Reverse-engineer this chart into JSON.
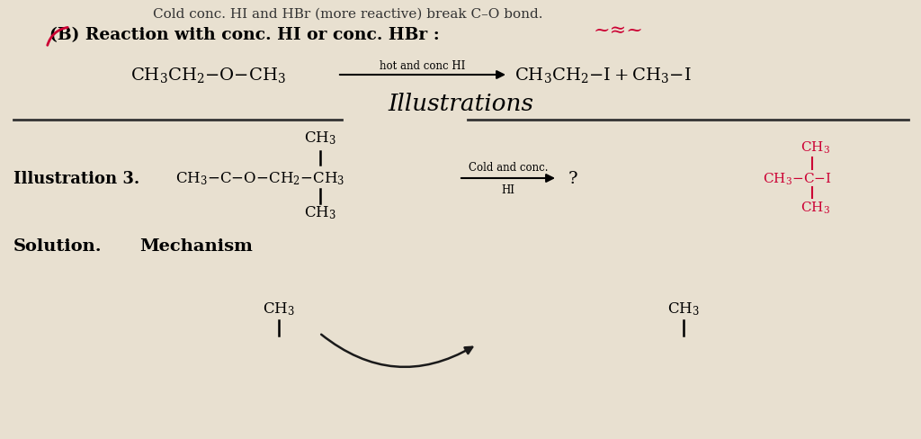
{
  "bg_color": "#e8e0d0",
  "top_text": "Cold conc. HI and HBr (more reactive) break C–O bond.",
  "section_B": "(B) Reaction with conc. HI or conc. HBr :",
  "rxn_left": "CH₃CH₂–O–CH₃",
  "rxn_arrow_top": "hot and conc HI",
  "rxn_right": "CH₃CH₂–I + CH₃–I",
  "illus_label": "Illustrations",
  "ill3_label": "Illustration 3.",
  "ill3_ch3_top": "CH₃",
  "ill3_main": "CH₃–C–O–CH₂–CH₃",
  "ill3_ch3_bot": "CH₃",
  "ill3_arr_top": "Cold and conc.",
  "ill3_arr_bot": "HI",
  "ill3_q": "?",
  "hw_ch3_top": "CH₃",
  "hw_mid": "CH₃–C–I",
  "hw_ch3_bot": "CH₃",
  "hw_color": "#cc0033",
  "sol_label": "Solution.",
  "mech_label": "Mechanism",
  "bot_ch3_left": "CH₃",
  "bot_ch3_right": "CH₃"
}
